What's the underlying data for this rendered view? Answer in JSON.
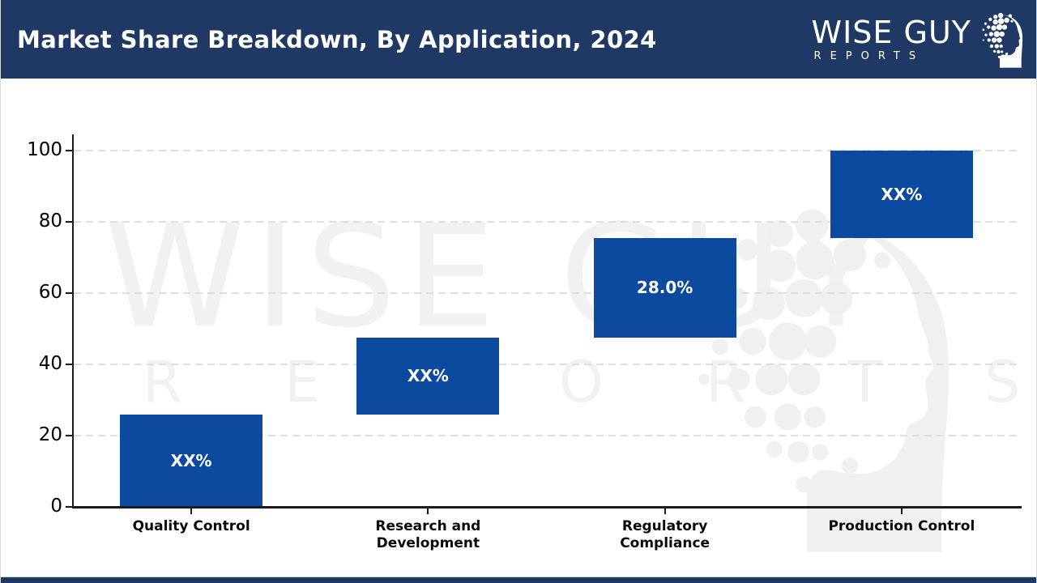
{
  "header": {
    "title": "Market Share Breakdown, By Application, 2024",
    "bg_color": "#1f3864",
    "logo": {
      "line1": "WISE GUY",
      "line2": "REPORTS"
    }
  },
  "watermark": {
    "line1": "WISE GUY",
    "line2": "R E P O R T S"
  },
  "colors": {
    "header_bg": "#1f3864",
    "footer_bg": "#1f3864",
    "bar": "#0b4a9e",
    "bar_label": "#ffffff",
    "axis": "#1c1c1c",
    "gridline": "#dedede",
    "watermark": "#f1f1f4"
  },
  "chart_data": {
    "type": "bar",
    "subtype": "waterfall",
    "title": "Market Share Breakdown, By Application, 2024",
    "categories": [
      "Quality Control",
      "Research and Development",
      "Regulatory Compliance",
      "Production Control"
    ],
    "category_display": [
      "Quality Control",
      "Research and\nDevelopment",
      "Regulatory\nCompliance",
      "Production Control"
    ],
    "segments": [
      {
        "category": "Quality Control",
        "from": 0,
        "to": 26,
        "value": 26,
        "label": "XX%"
      },
      {
        "category": "Research and Development",
        "from": 26,
        "to": 47.5,
        "value": 21.5,
        "label": "XX%"
      },
      {
        "category": "Regulatory Compliance",
        "from": 47.5,
        "to": 75.5,
        "value": 28,
        "label": "28.0%"
      },
      {
        "category": "Production Control",
        "from": 75.5,
        "to": 100,
        "value": 24.5,
        "label": "XX%"
      }
    ],
    "bar_labels": [
      "XX%",
      "XX%",
      "28.0%",
      "XX%"
    ],
    "bar_color": "#0b4a9e",
    "label_color": "#ffffff",
    "xlabel": "",
    "ylabel": "",
    "ylim": [
      0,
      100
    ],
    "yticks": [
      0,
      20,
      40,
      60,
      80,
      100
    ],
    "ytick_labels": [
      "0",
      "20",
      "40",
      "60",
      "80",
      "100"
    ],
    "grid": "horizontal-dashed",
    "legend": "none"
  }
}
